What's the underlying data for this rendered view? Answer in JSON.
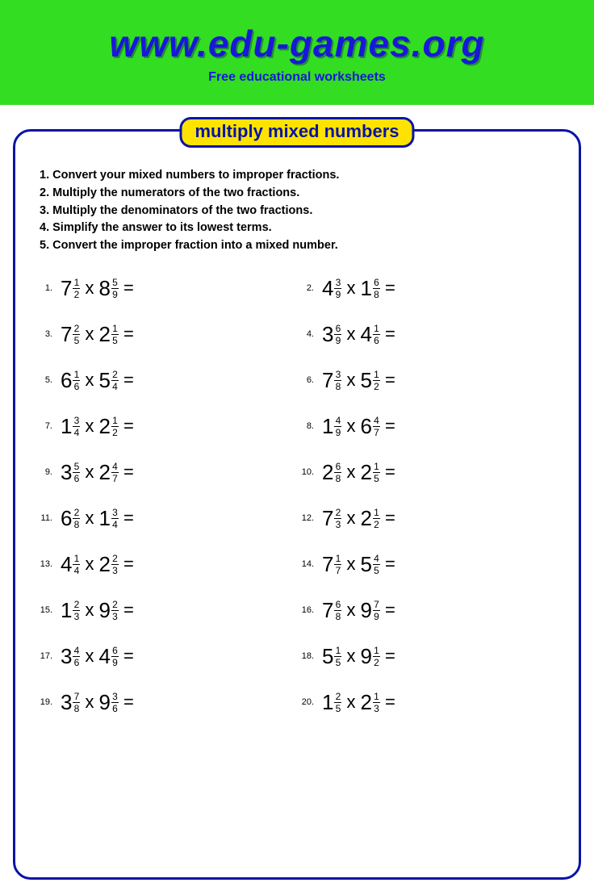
{
  "colors": {
    "banner_bg": "#33dd22",
    "banner_title": "#1818d8",
    "banner_subtitle": "#1818d8",
    "worksheet_border": "#0814a4",
    "pill_bg": "#ffe300",
    "pill_border": "#0814a4",
    "pill_text": "#0814a4",
    "text": "#000000"
  },
  "banner": {
    "title": "www.edu-games.org",
    "subtitle": "Free educational worksheets"
  },
  "worksheet": {
    "title": "multiply mixed numbers",
    "instructions": [
      "1. Convert your mixed numbers to improper fractions.",
      "2. Multiply the numerators of the two fractions.",
      "3. Multiply the denominators of the two fractions.",
      "4. Simplify the answer to its lowest terms.",
      "5. Convert the improper fraction into a mixed number."
    ],
    "operator": "x",
    "equals": "=",
    "problems": [
      {
        "n": "1.",
        "a": {
          "w": "7",
          "num": "1",
          "den": "2"
        },
        "b": {
          "w": "8",
          "num": "5",
          "den": "9"
        }
      },
      {
        "n": "2.",
        "a": {
          "w": "4",
          "num": "3",
          "den": "9"
        },
        "b": {
          "w": "1",
          "num": "6",
          "den": "8"
        }
      },
      {
        "n": "3.",
        "a": {
          "w": "7",
          "num": "2",
          "den": "5"
        },
        "b": {
          "w": "2",
          "num": "1",
          "den": "5"
        }
      },
      {
        "n": "4.",
        "a": {
          "w": "3",
          "num": "6",
          "den": "9"
        },
        "b": {
          "w": "4",
          "num": "1",
          "den": "6"
        }
      },
      {
        "n": "5.",
        "a": {
          "w": "6",
          "num": "1",
          "den": "6"
        },
        "b": {
          "w": "5",
          "num": "2",
          "den": "4"
        }
      },
      {
        "n": "6.",
        "a": {
          "w": "7",
          "num": "3",
          "den": "8"
        },
        "b": {
          "w": "5",
          "num": "1",
          "den": "2"
        }
      },
      {
        "n": "7.",
        "a": {
          "w": "1",
          "num": "3",
          "den": "4"
        },
        "b": {
          "w": "2",
          "num": "1",
          "den": "2"
        }
      },
      {
        "n": "8.",
        "a": {
          "w": "1",
          "num": "4",
          "den": "9"
        },
        "b": {
          "w": "6",
          "num": "4",
          "den": "7"
        }
      },
      {
        "n": "9.",
        "a": {
          "w": "3",
          "num": "5",
          "den": "6"
        },
        "b": {
          "w": "2",
          "num": "4",
          "den": "7"
        }
      },
      {
        "n": "10.",
        "a": {
          "w": "2",
          "num": "6",
          "den": "8"
        },
        "b": {
          "w": "2",
          "num": "1",
          "den": "5"
        }
      },
      {
        "n": "11.",
        "a": {
          "w": "6",
          "num": "2",
          "den": "8"
        },
        "b": {
          "w": "1",
          "num": "3",
          "den": "4"
        }
      },
      {
        "n": "12.",
        "a": {
          "w": "7",
          "num": "2",
          "den": "3"
        },
        "b": {
          "w": "2",
          "num": "1",
          "den": "2"
        }
      },
      {
        "n": "13.",
        "a": {
          "w": "4",
          "num": "1",
          "den": "4"
        },
        "b": {
          "w": "2",
          "num": "2",
          "den": "3"
        }
      },
      {
        "n": "14.",
        "a": {
          "w": "7",
          "num": "1",
          "den": "7"
        },
        "b": {
          "w": "5",
          "num": "4",
          "den": "5"
        }
      },
      {
        "n": "15.",
        "a": {
          "w": "1",
          "num": "2",
          "den": "3"
        },
        "b": {
          "w": "9",
          "num": "2",
          "den": "3"
        }
      },
      {
        "n": "16.",
        "a": {
          "w": "7",
          "num": "6",
          "den": "8"
        },
        "b": {
          "w": "9",
          "num": "7",
          "den": "9"
        }
      },
      {
        "n": "17.",
        "a": {
          "w": "3",
          "num": "4",
          "den": "6"
        },
        "b": {
          "w": "4",
          "num": "6",
          "den": "9"
        }
      },
      {
        "n": "18.",
        "a": {
          "w": "5",
          "num": "1",
          "den": "5"
        },
        "b": {
          "w": "9",
          "num": "1",
          "den": "2"
        }
      },
      {
        "n": "19.",
        "a": {
          "w": "3",
          "num": "7",
          "den": "8"
        },
        "b": {
          "w": "9",
          "num": "3",
          "den": "6"
        }
      },
      {
        "n": "20.",
        "a": {
          "w": "1",
          "num": "2",
          "den": "5"
        },
        "b": {
          "w": "2",
          "num": "1",
          "den": "3"
        }
      }
    ]
  }
}
